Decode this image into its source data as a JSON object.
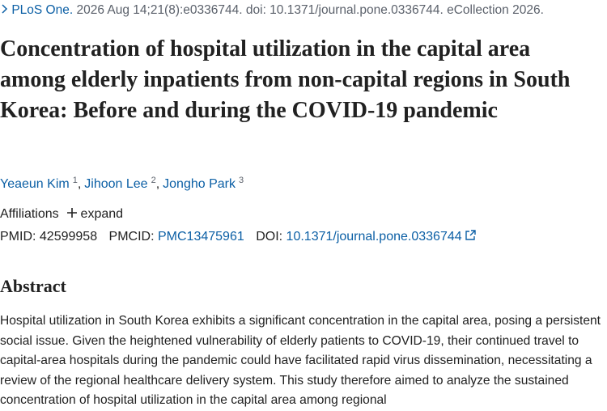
{
  "citation": {
    "journal": "PLoS One.",
    "details": "2026 Aug 14;21(8):e0336744. doi: 10.1371/journal.pone.0336744. eCollection 2026."
  },
  "title": "Concentration of hospital utilization in the capital area among elderly inpatients from non-capital regions in South Korea: Before and during the COVID-19 pandemic",
  "authors": {
    "separator": ",",
    "list": [
      {
        "name": "Yeaeun Kim",
        "affiliation": "1"
      },
      {
        "name": "Jihoon Lee",
        "affiliation": "2"
      },
      {
        "name": "Jongho Park",
        "affiliation": "3"
      }
    ]
  },
  "affiliations": {
    "label": "Affiliations",
    "expand": "expand"
  },
  "identifiers": {
    "pmid_label": "PMID:",
    "pmid": "42599958",
    "pmcid_label": "PMCID:",
    "pmcid": "PMC13475961",
    "doi_label": "DOI:",
    "doi": "10.1371/journal.pone.0336744"
  },
  "abstract": {
    "heading": "Abstract",
    "text": "Hospital utilization in South Korea exhibits a significant concentration in the capital area, posing a persistent social issue. Given the heightened vulnerability of elderly patients to COVID-19, their continued travel to capital-area hospitals during the pandemic could have facilitated rapid virus dissemination, necessitating a review of the regional healthcare delivery system. This study therefore aimed to analyze the sustained concentration of hospital utilization in the capital area among regional"
  }
}
